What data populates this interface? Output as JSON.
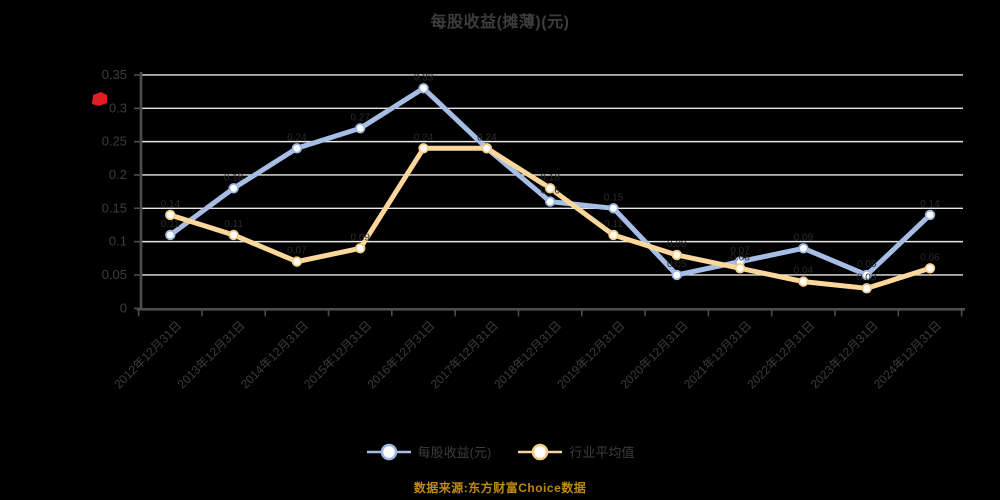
{
  "title": "每股收益(摊薄)(元)",
  "watermark": "数据来源:东方财富Choice数据",
  "colors": {
    "background": "#000000",
    "series1_line": "#a6bee6",
    "series1_ring": "#9db7e2",
    "series2_line": "#fbd79b",
    "series2_ring": "#f5cd88",
    "marker_fill": "#ffffff",
    "gridline": "#e8e8e8",
    "axis": "#4d4d4d",
    "text": "#3d3d3d",
    "data_label": "#2a2a2a",
    "red_marker": "#e02020",
    "watermark_gold": "#bf8a0e"
  },
  "y_axis": {
    "ticks": [
      {
        "label": "0.35",
        "value": 0.35
      },
      {
        "label": "0.3",
        "value": 0.3
      },
      {
        "label": "0.25",
        "value": 0.25
      },
      {
        "label": "0.2",
        "value": 0.2
      },
      {
        "label": "0.15",
        "value": 0.15
      },
      {
        "label": "0.1",
        "value": 0.1
      },
      {
        "label": "0.05",
        "value": 0.05
      },
      {
        "label": "0",
        "value": 0
      }
    ],
    "red_marker_at": "0.3"
  },
  "chart_data": {
    "type": "line",
    "title": "每股收益(摊薄)(元)",
    "categories": [
      "2012年12月31日",
      "2013年12月31日",
      "2014年12月31日",
      "2015年12月31日",
      "2016年12月31日",
      "2017年12月31日",
      "2018年12月31日",
      "2019年12月31日",
      "2020年12月31日",
      "2021年12月31日",
      "2022年12月31日",
      "2023年12月31日",
      "2024年12月31日"
    ],
    "series": [
      {
        "name": "每股收益(元)",
        "color": "#a6bee6",
        "ring": "#9db7e2",
        "values": [
          0.11,
          0.18,
          0.24,
          0.27,
          0.33,
          0.24,
          0.16,
          0.15,
          0.05,
          0.07,
          0.09,
          0.05,
          0.14
        ]
      },
      {
        "name": "行业平均值",
        "color": "#fbd79b",
        "ring": "#f5cd88",
        "values": [
          0.14,
          0.11,
          0.07,
          0.09,
          0.24,
          0.24,
          0.18,
          0.11,
          0.08,
          0.06,
          0.04,
          0.03,
          0.06
        ]
      }
    ],
    "ylim": [
      0,
      0.35
    ],
    "y_tick_step": 0.05,
    "grid": true,
    "data_labels": true,
    "legend_position": "bottom",
    "x_label_rotation": -45
  }
}
